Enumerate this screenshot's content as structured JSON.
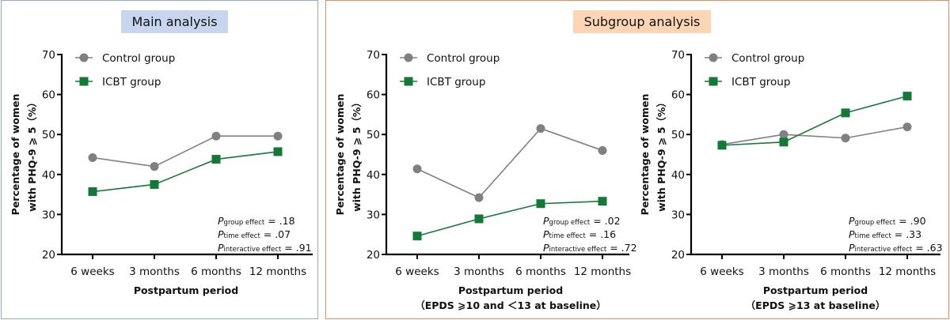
{
  "banners": {
    "main": "Main analysis",
    "subgroup": "Subgroup analysis"
  },
  "colors": {
    "control": "#808080",
    "icbt": "#127a36",
    "main_frame": "#8fabd4",
    "sub_frame": "#ee8a5c",
    "main_banner_bg": "#c7d6ee",
    "sub_banner_bg": "#fcd6b4"
  },
  "chart_data": [
    {
      "type": "line",
      "title": "Main analysis",
      "categories": [
        "6 weeks",
        "3 months",
        "6 months",
        "12 months"
      ],
      "series": [
        {
          "name": "Control group",
          "marker": "circle",
          "values": [
            44.2,
            42.0,
            49.6,
            49.6
          ]
        },
        {
          "name": "ICBT group",
          "marker": "square",
          "values": [
            35.7,
            37.5,
            43.8,
            45.7
          ]
        }
      ],
      "xlabel": "Postpartum period",
      "xlabel_sub": "",
      "ylabel_lines": [
        "Percentage of women",
        "with PHQ-9 ⩾ 5（%）"
      ],
      "ylim": [
        20,
        70
      ],
      "yticks": [
        20,
        30,
        40,
        50,
        60,
        70
      ],
      "grid": false,
      "legend": "top-left",
      "annotations": [
        {
          "sub": "group effect",
          "value": " = .18"
        },
        {
          "sub": "time effect",
          "value": " = .07"
        },
        {
          "sub": "interactive effect",
          "value": " = .91"
        }
      ]
    },
    {
      "type": "line",
      "title": "Subgroup analysis",
      "categories": [
        "6 weeks",
        "3 months",
        "6 months",
        "12 months"
      ],
      "series": [
        {
          "name": "Control group",
          "marker": "circle",
          "values": [
            41.4,
            34.2,
            51.5,
            46.0
          ]
        },
        {
          "name": "ICBT group",
          "marker": "square",
          "values": [
            24.6,
            28.9,
            32.7,
            33.3
          ]
        }
      ],
      "xlabel": "Postpartum period",
      "xlabel_sub": "（EPDS ⩾10 and ＜13 at baseline）",
      "ylabel_lines": [
        "Percentage of women",
        "with PHQ-9 ⩾ 5（%）"
      ],
      "ylim": [
        20,
        70
      ],
      "yticks": [
        20,
        30,
        40,
        50,
        60,
        70
      ],
      "grid": false,
      "legend": "top-left",
      "annotations": [
        {
          "sub": "group effect",
          "value": " = .02"
        },
        {
          "sub": "time effect",
          "value": " = .16"
        },
        {
          "sub": "interactive effect",
          "value": " = .72"
        }
      ]
    },
    {
      "type": "line",
      "title": "Subgroup analysis",
      "categories": [
        "6 weeks",
        "3 months",
        "6 months",
        "12 months"
      ],
      "series": [
        {
          "name": "Control group",
          "marker": "circle",
          "values": [
            47.5,
            50.0,
            49.1,
            51.9
          ]
        },
        {
          "name": "ICBT group",
          "marker": "square",
          "values": [
            47.3,
            48.1,
            55.4,
            59.6
          ]
        }
      ],
      "xlabel": "Postpartum period",
      "xlabel_sub": "（EPDS ⩾13 at baseline）",
      "ylabel_lines": [
        "Percentage of women",
        "with PHQ-9 ⩾ 5（%）"
      ],
      "ylim": [
        20,
        70
      ],
      "yticks": [
        20,
        30,
        40,
        50,
        60,
        70
      ],
      "grid": false,
      "legend": "top-left",
      "annotations": [
        {
          "sub": "group effect",
          "value": " = .90"
        },
        {
          "sub": "time effect",
          "value": " = .33"
        },
        {
          "sub": "interactive effect",
          "value": " = .63"
        }
      ]
    }
  ]
}
